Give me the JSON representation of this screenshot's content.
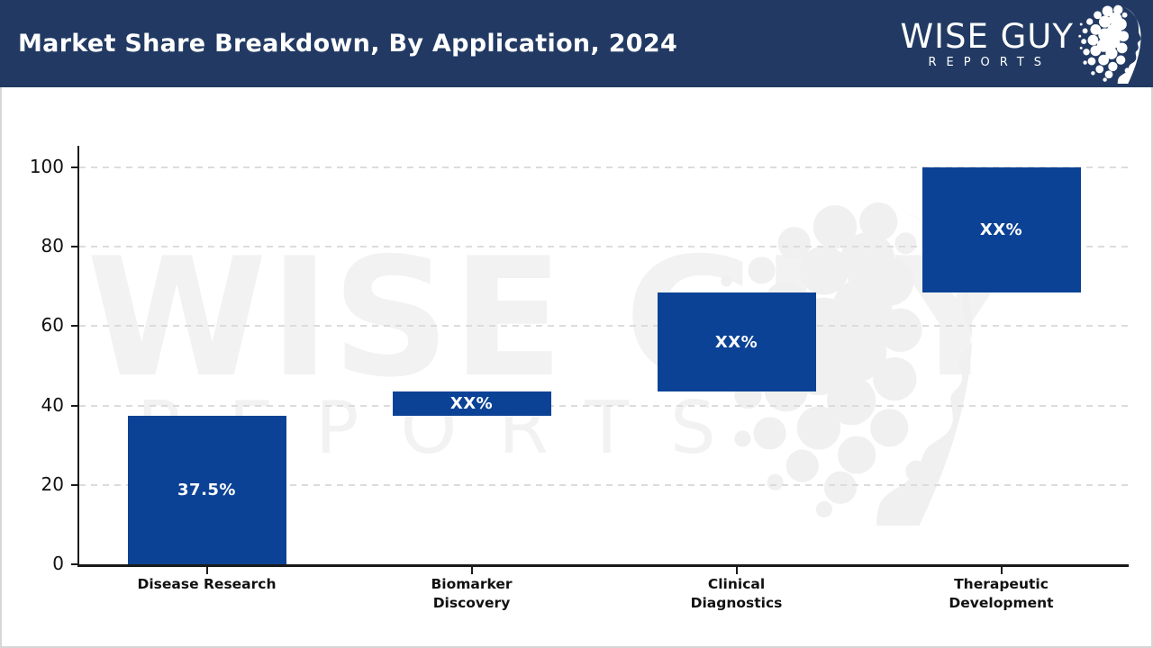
{
  "header": {
    "title": "Market Share Breakdown, By Application, 2024",
    "bg_color": "#223a63",
    "logo": {
      "line1": "WISE GUY",
      "line2": "REPORTS"
    }
  },
  "watermark": {
    "line1": "WISE GUY",
    "line2": "REPORTS"
  },
  "chart_data": {
    "type": "bar",
    "subtype": "waterfall",
    "title": "Market Share Breakdown, By Application, 2024",
    "categories": [
      "Disease Research",
      "Biomarker\nDiscovery",
      "Clinical\nDiagnostics",
      "Therapeutic\nDevelopment"
    ],
    "bars": [
      {
        "category": "Disease Research",
        "label": "37.5%",
        "start": 0,
        "end": 37.5
      },
      {
        "category": "Biomarker Discovery",
        "label": "XX%",
        "start": 37.5,
        "end": 43.5
      },
      {
        "category": "Clinical Diagnostics",
        "label": "XX%",
        "start": 43.5,
        "end": 68.5
      },
      {
        "category": "Therapeutic Development",
        "label": "XX%",
        "start": 68.5,
        "end": 100
      }
    ],
    "ylim": [
      0,
      100
    ],
    "yticks": [
      0,
      20,
      40,
      60,
      80,
      100
    ],
    "grid": "horizontal-dashed",
    "legend": "none",
    "bar_color": "#0b4295",
    "value_label_color": "#ffffff"
  }
}
